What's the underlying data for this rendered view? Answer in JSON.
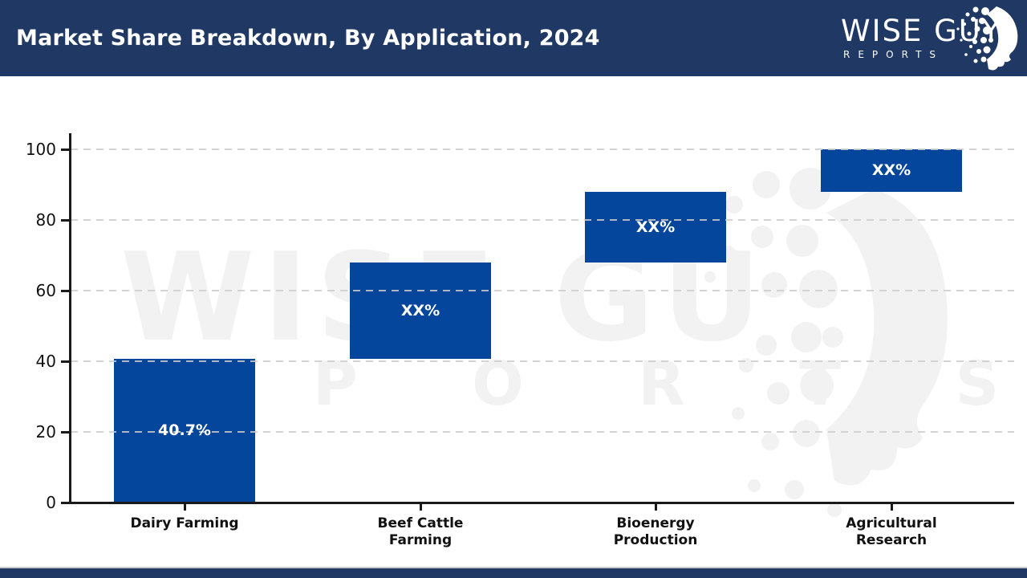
{
  "header": {
    "title": "Market Share Breakdown, By Application, 2024",
    "bg_color": "#1f3864",
    "logo": {
      "line1": "WISE GUY",
      "line2": "REPORTS"
    }
  },
  "watermark": {
    "line1": "WISE GU",
    "line2": "P O R T S"
  },
  "chart_data": {
    "type": "bar",
    "subtype": "waterfall",
    "title": "Market Share Breakdown, By Application, 2024",
    "categories": [
      "Dairy Farming",
      "Beef Cattle\nFarming",
      "Bioenergy\nProduction",
      "Agricultural\nResearch"
    ],
    "segments": [
      {
        "category": "Dairy Farming",
        "start": 0,
        "end": 40.7,
        "label": "40.7%"
      },
      {
        "category": "Beef Cattle Farming",
        "start": 40.7,
        "end": 68,
        "label": "XX%"
      },
      {
        "category": "Bioenergy Production",
        "start": 68,
        "end": 88,
        "label": "XX%"
      },
      {
        "category": "Agricultural Research",
        "start": 88,
        "end": 100,
        "label": "XX%"
      }
    ],
    "bar_labels_shown": [
      "40.7%",
      "XX%",
      "XX%",
      "XX%"
    ],
    "xlabel": "",
    "ylabel": "",
    "ylim": [
      0,
      100
    ],
    "yticks": [
      0,
      20,
      40,
      60,
      80,
      100
    ],
    "grid": "horizontal dashed, drawn over bars",
    "legend": "none",
    "bar_color": "#04469b",
    "grid_color": "#cdcdcd",
    "axis_color": "#1a1a1a"
  }
}
